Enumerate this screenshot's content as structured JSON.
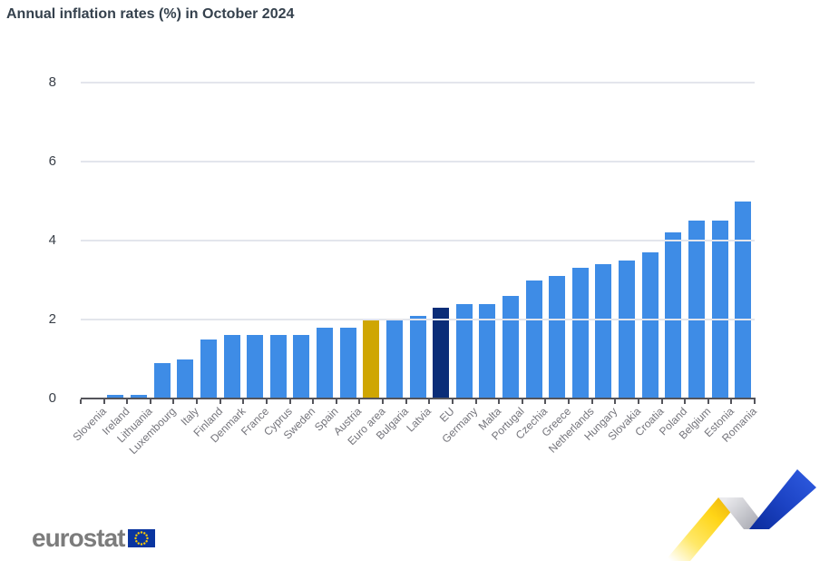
{
  "title": "Annual inflation rates (%) in October 2024",
  "chart_data": {
    "type": "bar",
    "title": "Annual inflation rates (%) in October 2024",
    "categories": [
      "Slovenia",
      "Ireland",
      "Lithuania",
      "Luxembourg",
      "Italy",
      "Finland",
      "Denmark",
      "France",
      "Cyprus",
      "Sweden",
      "Spain",
      "Austria",
      "Euro area",
      "Bulgaria",
      "Latvia",
      "EU",
      "Germany",
      "Malta",
      "Portugal",
      "Czechia",
      "Greece",
      "Netherlands",
      "Hungary",
      "Slovakia",
      "Croatia",
      "Poland",
      "Belgium",
      "Estonia",
      "Romania"
    ],
    "values": [
      0.0,
      0.1,
      0.1,
      0.9,
      1.0,
      1.5,
      1.6,
      1.6,
      1.6,
      1.6,
      1.8,
      1.8,
      2.0,
      2.0,
      2.1,
      2.3,
      2.4,
      2.4,
      2.6,
      3.0,
      3.1,
      3.3,
      3.4,
      3.5,
      3.7,
      4.2,
      4.5,
      4.5,
      5.0
    ],
    "xlabel": "",
    "ylabel": "",
    "ylim": [
      0,
      8
    ],
    "yticks": [
      0,
      2,
      4,
      6,
      8
    ],
    "grid": "horizontal gridlines at y ticks, drawn on top of bars",
    "legend": "none",
    "bar_color_default": "#3E8CE6",
    "bar_color_special": {
      "Euro area": "#CFA602",
      "EU": "#0A2D78"
    }
  },
  "colors": {
    "background": "#FFFFFF",
    "title_text": "#35414D",
    "axis_line": "#54545A",
    "gridline": "#E3E5EC",
    "y_tick_label": "#3A4049",
    "x_tick_label": "#74747B",
    "bar_blue": "#3E8CE6",
    "bar_gold_euro_area": "#CFA602",
    "bar_navy_eu": "#0A2D78",
    "logo_text": "#7C7C7C",
    "eu_flag_blue": "#0A35A0",
    "eu_flag_stars": "#FFCC00",
    "ribbon_yellow": "#FFD517",
    "ribbon_silver": "#A6A7B0",
    "ribbon_blue": "#1C43C4"
  },
  "logo": {
    "text": "eurostat"
  }
}
